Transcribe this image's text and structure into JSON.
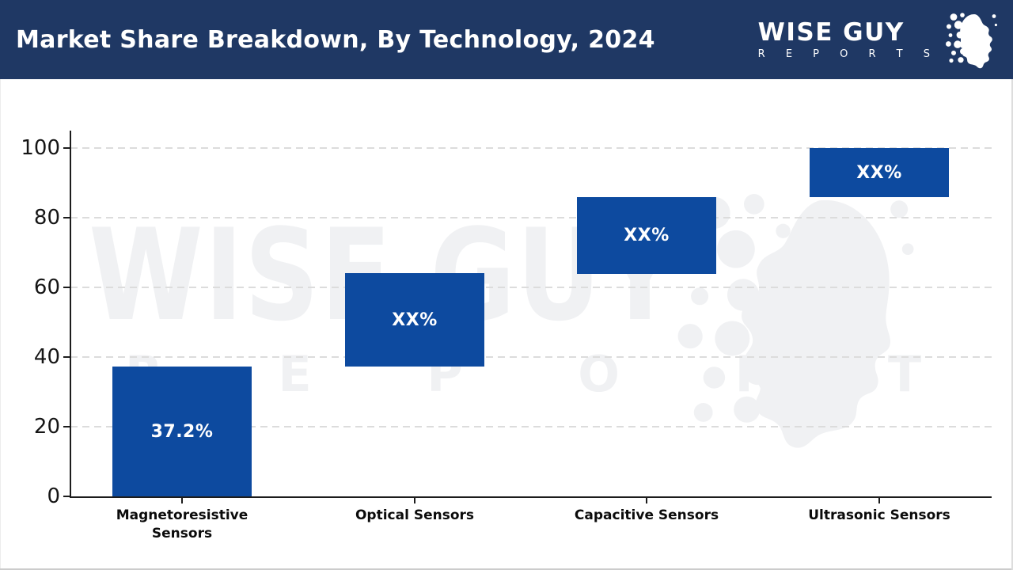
{
  "header": {
    "title": "Market Share Breakdown, By Technology, 2024",
    "logo": {
      "line1": "WISE GUY",
      "line2": "R E P O R T S"
    }
  },
  "watermark": {
    "line1": "WISE GUY",
    "line2": "R E P O R T S"
  },
  "colors": {
    "header_bg": "#1f3864",
    "title_text": "#ffffff",
    "bar": "#0d4a9f",
    "bar_label": "#ffffff",
    "axis": "#1c1c1c",
    "grid": "#dcdcdc",
    "watermark": "#f0f1f3"
  },
  "chart_data": {
    "type": "bar",
    "subtype": "floating-segment-waterfall",
    "title": "Market Share Breakdown, By Technology, 2024",
    "categories": [
      "Magnetoresistive Sensors",
      "Optical Sensors",
      "Capacitive Sensors",
      "Ultrasonic Sensors"
    ],
    "segments": [
      {
        "category": "Magnetoresistive Sensors",
        "start": 0,
        "end": 37.2,
        "label": "37.2%"
      },
      {
        "category": "Optical Sensors",
        "start": 37.2,
        "end": 64,
        "label": "XX%"
      },
      {
        "category": "Capacitive Sensors",
        "start": 64,
        "end": 86,
        "label": "XX%"
      },
      {
        "category": "Ultrasonic Sensors",
        "start": 86,
        "end": 100,
        "label": "XX%"
      }
    ],
    "xlabel": "",
    "ylabel": "",
    "ylim": [
      0,
      100
    ],
    "yticks": [
      0,
      20,
      40,
      60,
      80,
      100
    ],
    "grid": "horizontal-dashed",
    "legend": "none"
  }
}
